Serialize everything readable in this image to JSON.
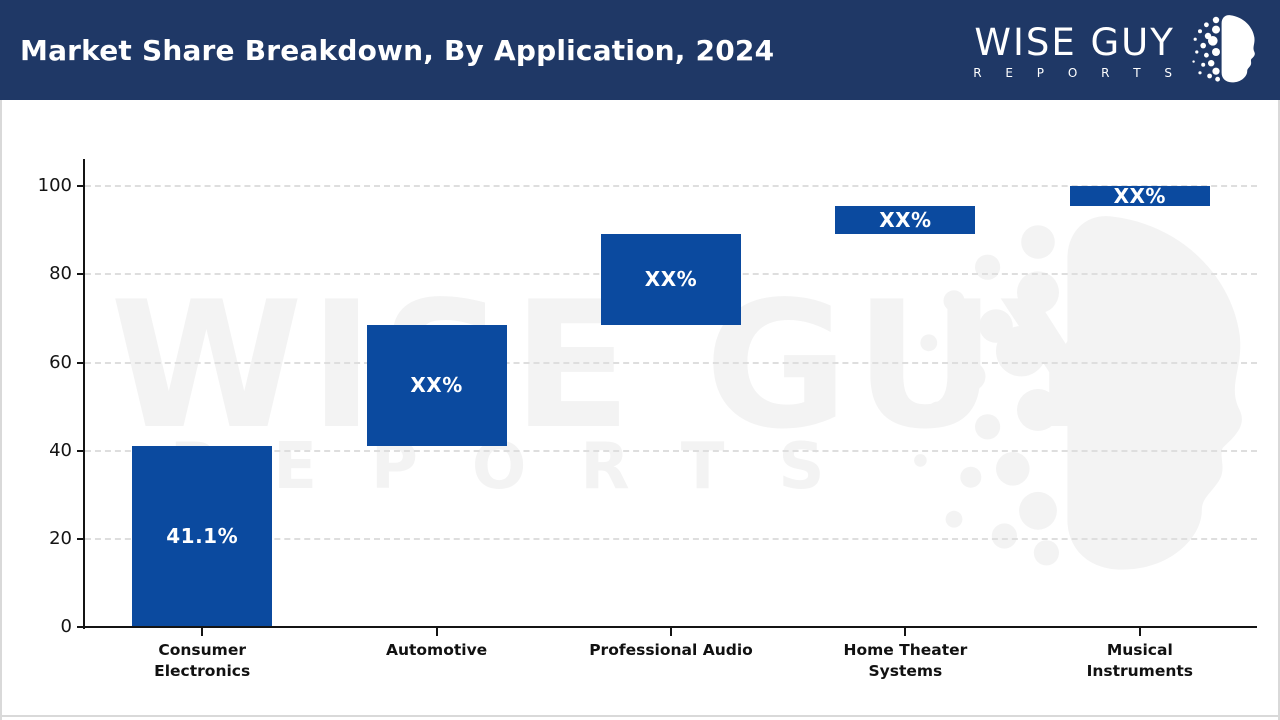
{
  "header": {
    "title": "Market Share Breakdown, By Application, 2024",
    "logo": {
      "line1": "WISE GUY",
      "line2": "R E P O R T S"
    }
  },
  "watermark": {
    "line1": "WISE GUY",
    "line2": "REPORTS"
  },
  "colors": {
    "header_bg": "#1F3866",
    "bar_blue": "#0B4A9F",
    "gridline": "#DEDEDE",
    "axis": "#141414",
    "watermark": "#F3F3F3",
    "page_border": "#D9D9D9",
    "title_text": "#FFFFFF",
    "bar_label_text": "#FFFFFF"
  },
  "chart_data": {
    "type": "bar",
    "subtype": "waterfall",
    "title": "Market Share Breakdown, By Application, 2024",
    "xlabel": "",
    "ylabel": "",
    "categories": [
      "Consumer\nElectronics",
      "Automotive",
      "Professional Audio",
      "Home Theater\nSystems",
      "Musical\nInstruments"
    ],
    "segments": [
      {
        "category": "Consumer\nElectronics",
        "start": 0,
        "end": 41.1,
        "value": 41.1,
        "label": "41.1%"
      },
      {
        "category": "Automotive",
        "start": 41.1,
        "end": 68.6,
        "value": 27.5,
        "label": "XX%"
      },
      {
        "category": "Professional Audio",
        "start": 68.6,
        "end": 89.1,
        "value": 20.5,
        "label": "XX%"
      },
      {
        "category": "Home Theater\nSystems",
        "start": 89.1,
        "end": 95.5,
        "value": 6.4,
        "label": "XX%"
      },
      {
        "category": "Musical\nInstruments",
        "start": 95.5,
        "end": 100,
        "value": 4.5,
        "label": "XX%"
      }
    ],
    "yticks": [
      0,
      20,
      40,
      60,
      80,
      100
    ],
    "ylim": [
      0,
      106
    ],
    "grid": "horizontal-dashed",
    "legend": "none",
    "bar_color": "#0B4A9F"
  }
}
